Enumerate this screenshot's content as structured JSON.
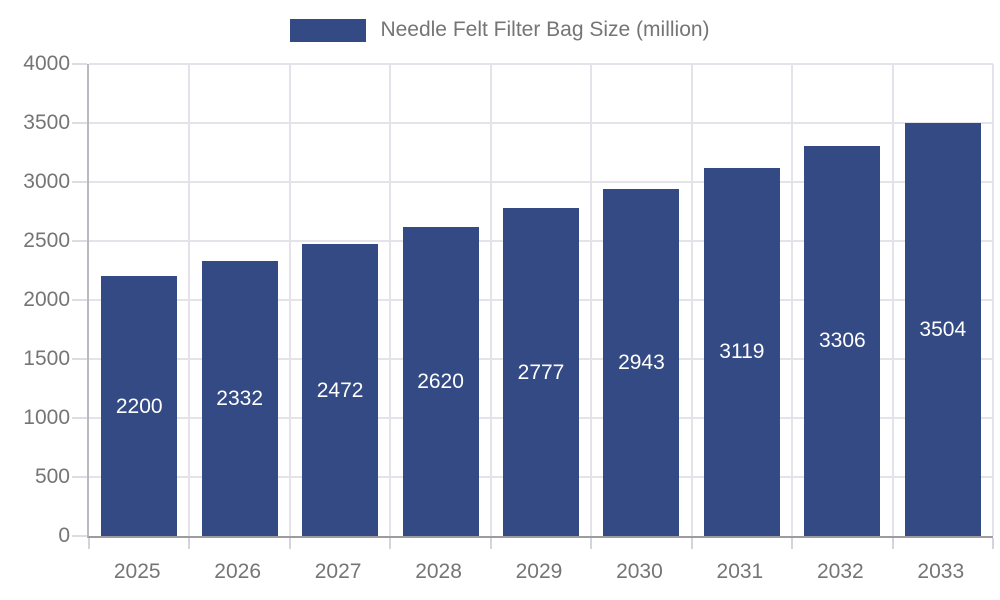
{
  "chart_data": {
    "type": "bar",
    "categories": [
      "2025",
      "2026",
      "2027",
      "2028",
      "2029",
      "2030",
      "2031",
      "2032",
      "2033"
    ],
    "series": [
      {
        "name": "Needle Felt Filter Bag Size (million)",
        "values": [
          2200,
          2332,
          2472,
          2620,
          2777,
          2943,
          3119,
          3306,
          3504
        ],
        "color": "#344a84"
      }
    ],
    "value_labels": [
      "2200",
      "2332",
      "2472",
      "2620",
      "2777",
      "2943",
      "3119",
      "3306",
      "3504"
    ],
    "xlabel": "",
    "ylabel": "",
    "ylim": [
      0,
      4000
    ],
    "y_ticks": [
      0,
      500,
      1000,
      1500,
      2000,
      2500,
      3000,
      3500,
      4000
    ],
    "grid": "both",
    "legend": {
      "position": "top",
      "entries": [
        "Needle Felt Filter Bag Size (million)"
      ]
    },
    "colors": {
      "bar": "#344a84",
      "bar_value_text": "#ffffff",
      "axis_text": "#757575",
      "gridline": "#e3e3e9",
      "y_axis_line": "#b9b9c0",
      "x_axis_line": "#9b9ba1",
      "background": "#ffffff"
    }
  }
}
